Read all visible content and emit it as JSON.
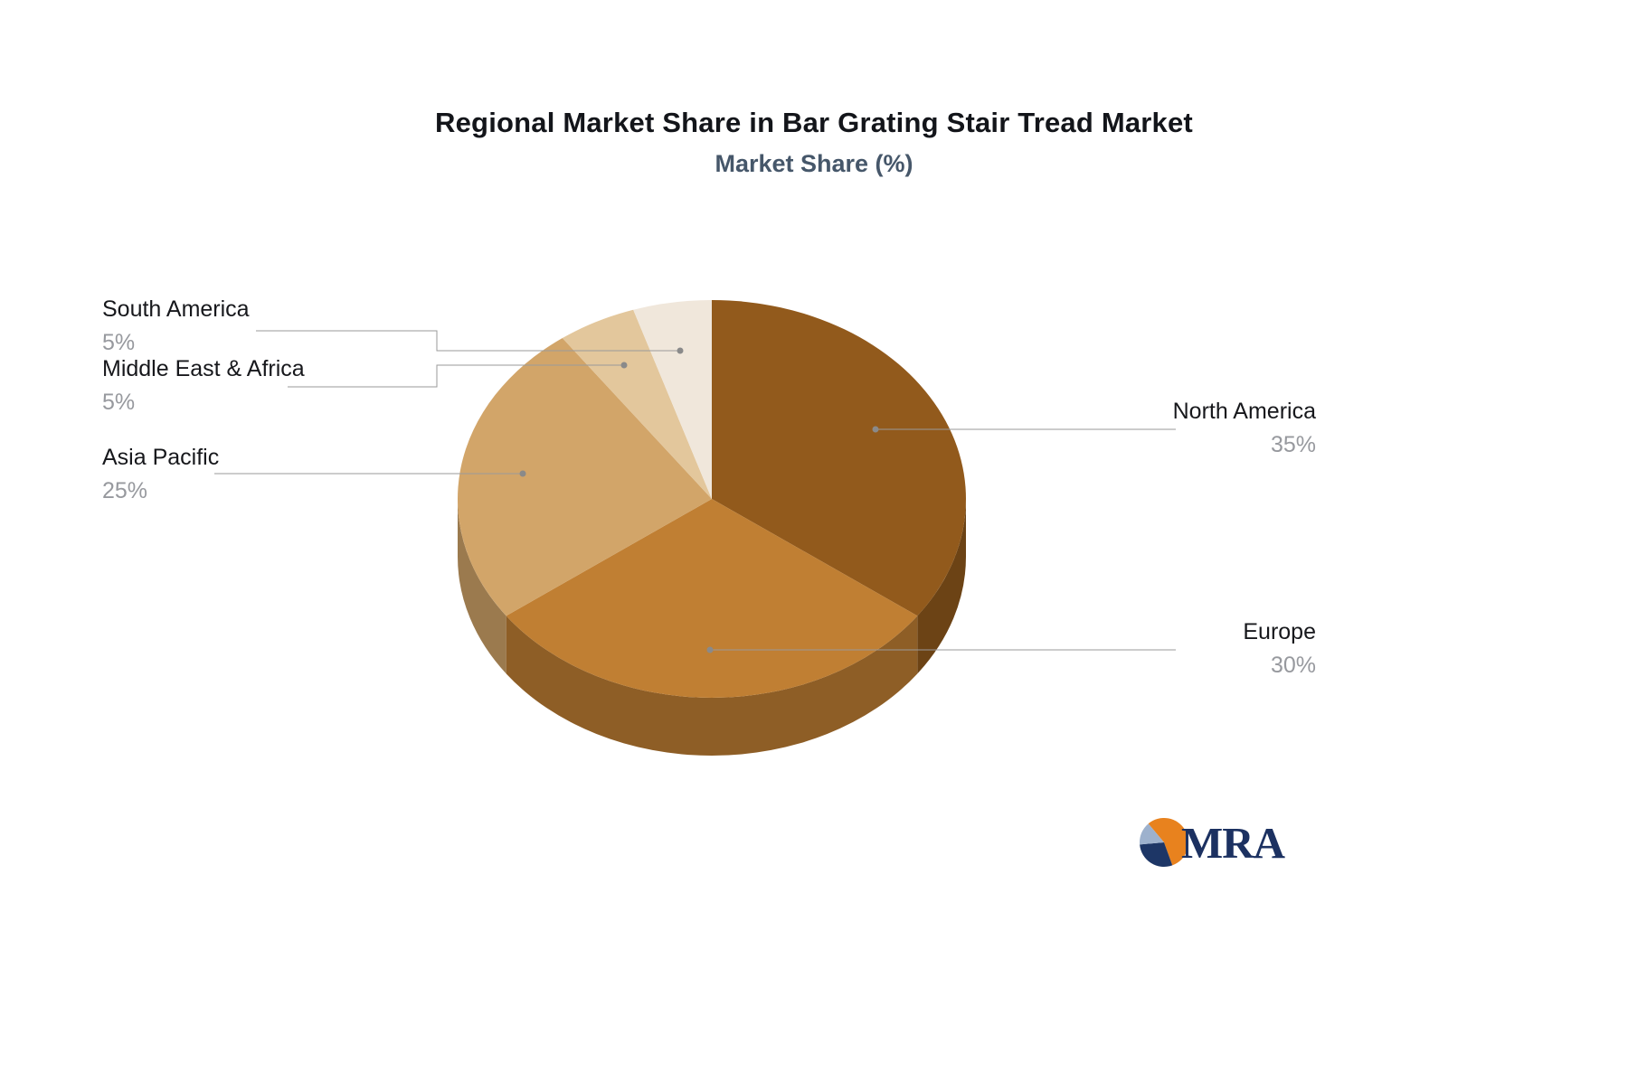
{
  "header": {
    "title": "Regional Market Share in Bar Grating Stair Tread Market",
    "subtitle": "Market Share (%)"
  },
  "logo": {
    "text": "MRA"
  },
  "chart_data": {
    "type": "pie",
    "style": "3d",
    "title": "Regional Market Share in Bar Grating Stair Tread Market",
    "subtitle": "Market Share (%)",
    "unit": "%",
    "start_angle_deg": 0,
    "direction": "clockwise",
    "legend_position": "callout-labels",
    "slices": [
      {
        "label": "North America",
        "value": 35,
        "display": "35%",
        "color": "#925A1C"
      },
      {
        "label": "Europe",
        "value": 30,
        "display": "30%",
        "color": "#C07F33"
      },
      {
        "label": "Asia Pacific",
        "value": 25,
        "display": "25%",
        "color": "#D2A569"
      },
      {
        "label": "Middle East & Africa",
        "value": 5,
        "display": "5%",
        "color": "#E3C79C"
      },
      {
        "label": "South America",
        "value": 5,
        "display": "5%",
        "color": "#F0E7DB"
      }
    ]
  }
}
